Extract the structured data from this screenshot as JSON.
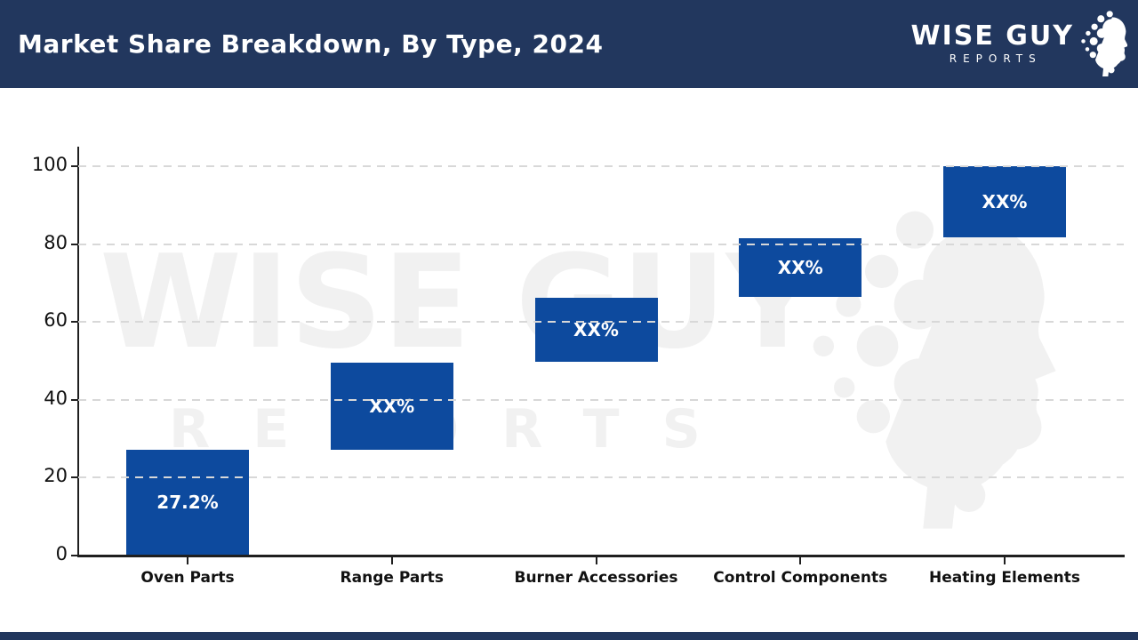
{
  "header": {
    "title": "Market Share Breakdown, By Type, 2024",
    "logo": {
      "primary": "WISE GUY",
      "secondary": "REPORTS"
    }
  },
  "watermark": {
    "primary": "WISE GUY",
    "secondary": "REPORTS"
  },
  "colors": {
    "header_bg": "#22375e",
    "footer_bg": "#22375e",
    "bar_fill": "#0d4a9e",
    "bar_label": "#ffffff",
    "axis": "#1f1f1f",
    "gridline": "#d8d8d8",
    "watermark": "#f1f1f1"
  },
  "chart_data": {
    "type": "bar",
    "subtype": "waterfall",
    "title": "Market Share Breakdown, By Type, 2024",
    "categories": [
      "Oven Parts",
      "Range Parts",
      "Burner Accessories",
      "Control Components",
      "Heating Elements"
    ],
    "segments": [
      {
        "category": "Oven Parts",
        "start": 0,
        "end": 27.2,
        "label": "27.2%"
      },
      {
        "category": "Range Parts",
        "start": 27.2,
        "end": 49.5,
        "label": "XX%"
      },
      {
        "category": "Burner Accessories",
        "start": 49.8,
        "end": 66.2,
        "label": "XX%"
      },
      {
        "category": "Control Components",
        "start": 66.5,
        "end": 81.5,
        "label": "XX%"
      },
      {
        "category": "Heating Elements",
        "start": 81.8,
        "end": 100,
        "label": "XX%"
      }
    ],
    "ylim": [
      0,
      100
    ],
    "yticks": [
      0,
      20,
      40,
      60,
      80,
      100
    ],
    "grid": "dashed-horizontal",
    "legend": null
  }
}
